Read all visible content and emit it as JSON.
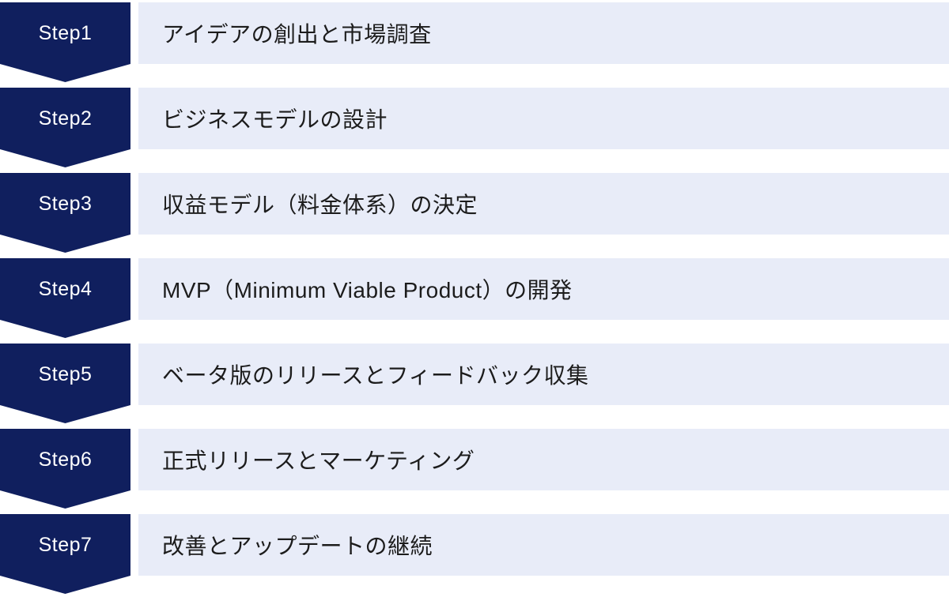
{
  "diagram": {
    "type": "process-steps",
    "steps": [
      {
        "label": "Step1",
        "title": "アイデアの創出と市場調査"
      },
      {
        "label": "Step2",
        "title": "ビジネスモデルの設計"
      },
      {
        "label": "Step3",
        "title": "収益モデル（料金体系）の決定"
      },
      {
        "label": "Step4",
        "title": "MVP（Minimum Viable Product）の開発"
      },
      {
        "label": "Step5",
        "title": "ベータ版のリリースとフィードバック収集"
      },
      {
        "label": "Step6",
        "title": "正式リリースとマーケティング"
      },
      {
        "label": "Step7",
        "title": "改善とアップデートの継続"
      }
    ]
  },
  "colors": {
    "step_chevron": "#101f5e",
    "step_label_text": "#ffffff",
    "description_bar": "#e8ecf8",
    "description_text": "#1c1c1c",
    "background": "#ffffff"
  }
}
